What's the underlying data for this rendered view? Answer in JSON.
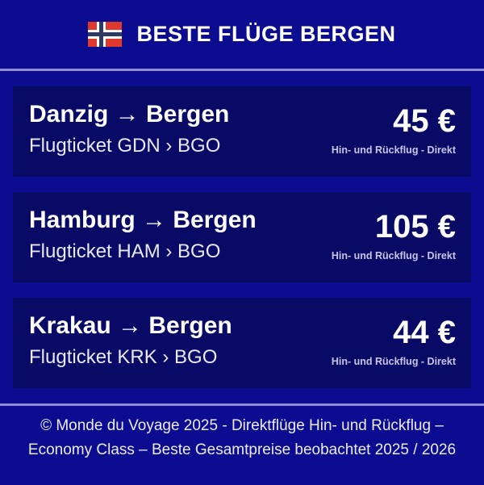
{
  "colors": {
    "page_background": "#0c0c90",
    "card_background": "#090966",
    "divider": "#8d8dd4",
    "text_primary": "#ffffff",
    "text_secondary": "#e9e9fb",
    "text_muted": "#c6c6ea",
    "flag_red": "#df392e",
    "flag_cross_blue": "#2e3a64",
    "flag_cross_white": "#ffffff"
  },
  "header": {
    "title": "BESTE FLÜGE BERGEN",
    "flag_icon": "norway-flag-icon"
  },
  "flights": [
    {
      "route": "Danzig → Bergen",
      "ticket": "Flugticket GDN › BGO",
      "price": "45 €",
      "note": "Hin- und Rückflug - Direkt"
    },
    {
      "route": "Hamburg → Bergen",
      "ticket": "Flugticket HAM › BGO",
      "price": "105 €",
      "note": "Hin- und Rückflug - Direkt"
    },
    {
      "route": "Krakau → Bergen",
      "ticket": "Flugticket KRK › BGO",
      "price": "44 €",
      "note": "Hin- und Rückflug - Direkt"
    }
  ],
  "footer": {
    "line1": "© Monde du Voyage 2025 - Direktflüge Hin- und Rückflug –",
    "line2": "Economy Class – Beste Gesamtpreise beobachtet 2025 / 2026"
  }
}
